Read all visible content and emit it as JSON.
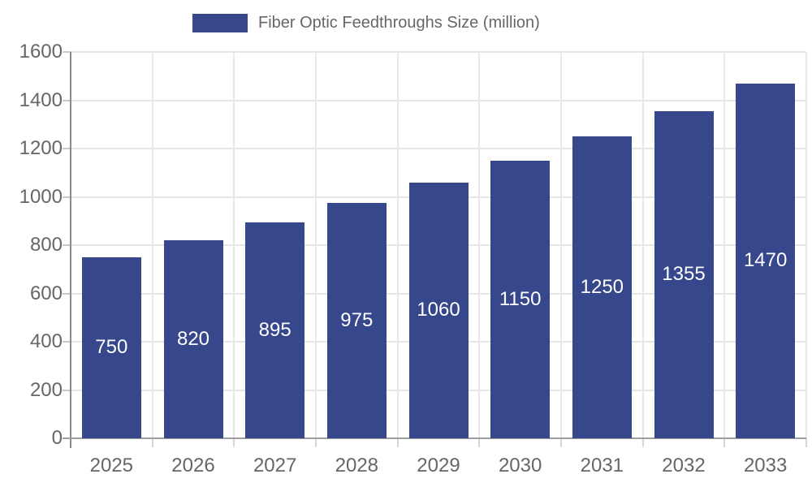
{
  "legend": {
    "label": "Fiber Optic Feedthroughs Size (million)"
  },
  "chart_data": {
    "type": "bar",
    "title": "Fiber Optic Feedthroughs Size (million)",
    "series_name": "Fiber Optic Feedthroughs Size (million)",
    "categories": [
      "2025",
      "2026",
      "2027",
      "2028",
      "2029",
      "2030",
      "2031",
      "2032",
      "2033"
    ],
    "values": [
      750,
      820,
      895,
      975,
      1060,
      1150,
      1250,
      1355,
      1470
    ],
    "value_labels": [
      "750",
      "820",
      "895",
      "975",
      "1060",
      "1150",
      "1250",
      "1355",
      "1470"
    ],
    "xlabel": "",
    "ylabel": "",
    "ylim": [
      0,
      1600
    ],
    "yticks": [
      0,
      200,
      400,
      600,
      800,
      1000,
      1200,
      1400,
      1600
    ],
    "grid": true,
    "legend_position": "top",
    "bar_color": "#36478C",
    "value_label_color": "#FFFFFF",
    "axis_text_color": "#666666"
  }
}
